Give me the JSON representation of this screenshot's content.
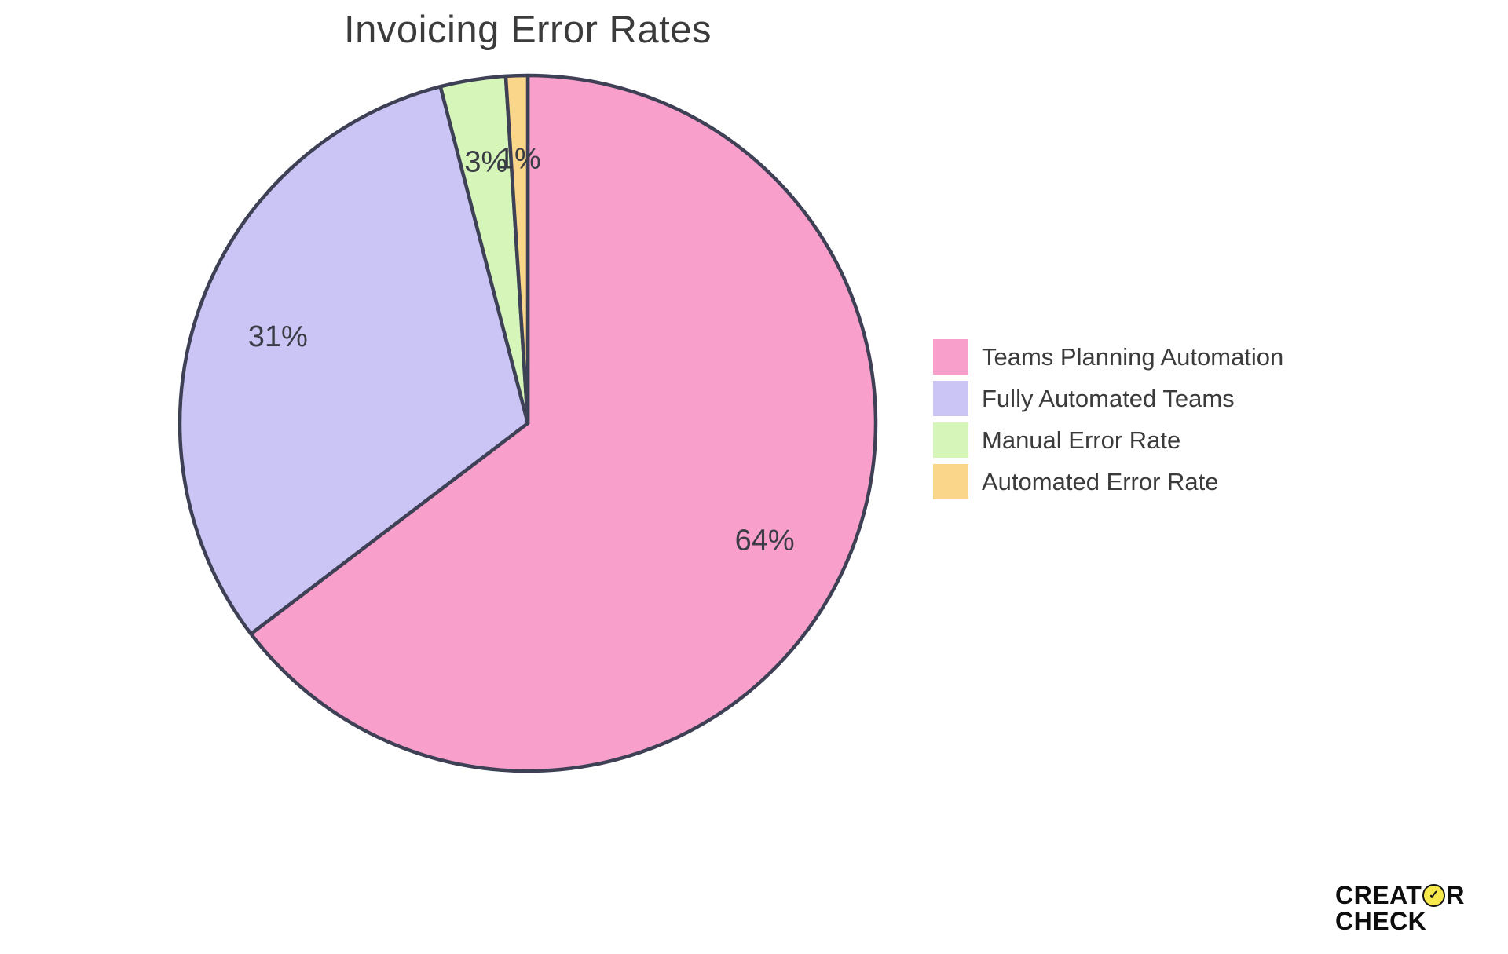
{
  "chart_data": {
    "type": "pie",
    "title": "Invoicing Error Rates",
    "labels": [
      "Teams Planning Automation",
      "Fully Automated Teams",
      "Manual Error Rate",
      "Automated Error Rate"
    ],
    "values": [
      64,
      31,
      3,
      1
    ],
    "slice_labels": [
      "64%",
      "31%",
      "3%",
      "1%"
    ],
    "colors": [
      "#F99FCB",
      "#CBC5F5",
      "#D6F5B8",
      "#FAD68A"
    ],
    "stroke_color": "#3E4155",
    "label_color": "#3A3D46",
    "legend_position": "right",
    "start_angle_deg": 0,
    "direction": "clockwise",
    "label_distance": 0.76
  },
  "logo": {
    "line1_before_badge": "CREAT",
    "line1_after_badge": "R",
    "line2": "CHECK",
    "badge_check": "✓",
    "badge_color": "#F7E84B"
  }
}
